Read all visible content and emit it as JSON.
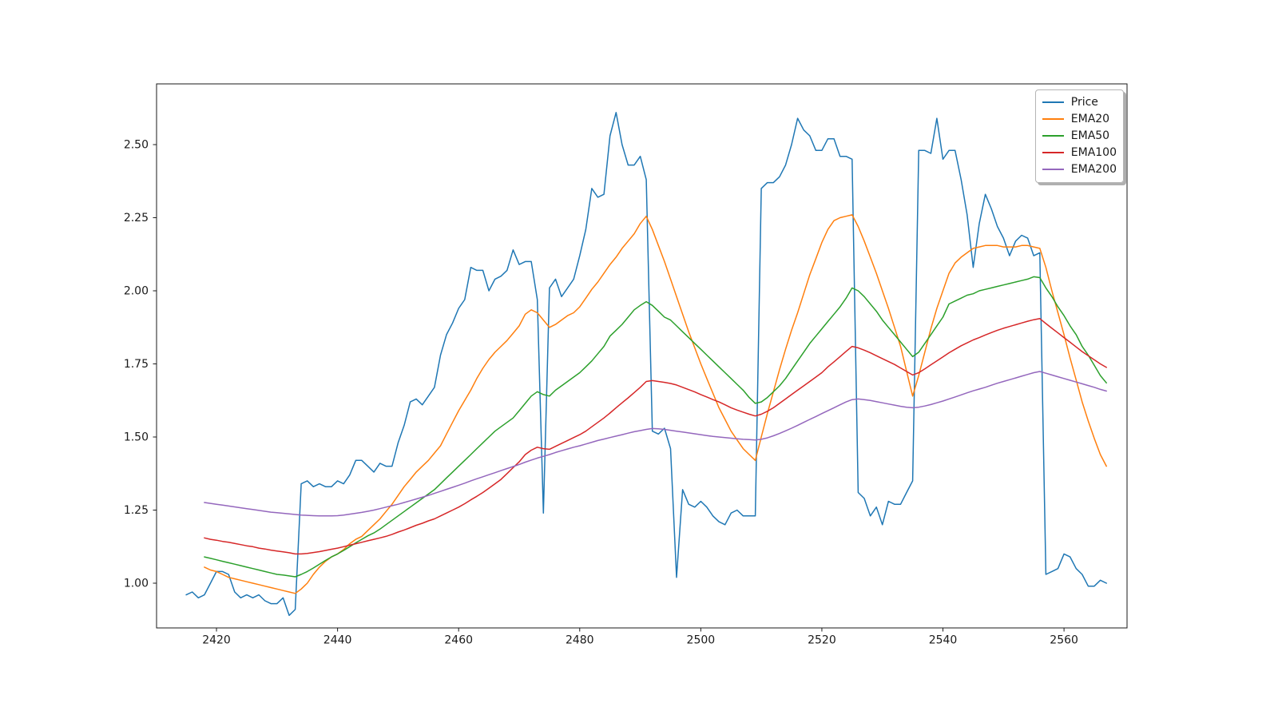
{
  "chart_data": {
    "type": "line",
    "title": "",
    "xlabel": "",
    "ylabel": "",
    "grid": false,
    "background": "#ffffff",
    "spine_color": "#1a1a1a",
    "x_axis": {
      "min": 2410.1,
      "max": 2570.41,
      "ticks": [
        2420,
        2440,
        2460,
        2480,
        2500,
        2520,
        2540,
        2560
      ]
    },
    "y_axis": {
      "min": 0.847,
      "max": 2.7077,
      "ticks": [
        "1.00",
        "1.25",
        "1.50",
        "1.75",
        "2.00",
        "2.25",
        "2.50"
      ]
    },
    "legend": {
      "position": "upper right",
      "entries": [
        "Price",
        "EMA20",
        "EMA50",
        "EMA100",
        "EMA200"
      ]
    },
    "series": [
      {
        "name": "Price",
        "color": "#1f77b4",
        "x_start": 2415,
        "x_step": 1,
        "values": [
          0.96,
          0.97,
          0.95,
          0.96,
          1.0,
          1.04,
          1.04,
          1.03,
          0.97,
          0.95,
          0.96,
          0.95,
          0.96,
          0.94,
          0.93,
          0.93,
          0.95,
          0.89,
          0.91,
          1.34,
          1.35,
          1.33,
          1.34,
          1.33,
          1.33,
          1.35,
          1.34,
          1.37,
          1.42,
          1.42,
          1.4,
          1.38,
          1.41,
          1.4,
          1.4,
          1.48,
          1.54,
          1.62,
          1.63,
          1.61,
          1.64,
          1.67,
          1.78,
          1.85,
          1.89,
          1.94,
          1.97,
          2.08,
          2.07,
          2.07,
          2.0,
          2.04,
          2.05,
          2.07,
          2.14,
          2.09,
          2.1,
          2.1,
          1.97,
          1.24,
          2.01,
          2.04,
          1.98,
          2.01,
          2.04,
          2.12,
          2.21,
          2.35,
          2.32,
          2.33,
          2.53,
          2.61,
          2.5,
          2.43,
          2.43,
          2.46,
          2.38,
          1.52,
          1.51,
          1.53,
          1.46,
          1.02,
          1.32,
          1.27,
          1.26,
          1.28,
          1.26,
          1.23,
          1.21,
          1.2,
          1.24,
          1.25,
          1.23,
          1.23,
          1.23,
          2.35,
          2.37,
          2.37,
          2.39,
          2.43,
          2.5,
          2.59,
          2.55,
          2.53,
          2.48,
          2.48,
          2.52,
          2.52,
          2.46,
          2.46,
          2.45,
          1.31,
          1.29,
          1.23,
          1.26,
          1.2,
          1.28,
          1.27,
          1.27,
          1.31,
          1.35,
          2.48,
          2.48,
          2.47,
          2.59,
          2.45,
          2.48,
          2.48,
          2.38,
          2.26,
          2.08,
          2.23,
          2.33,
          2.28,
          2.22,
          2.18,
          2.12,
          2.17,
          2.19,
          2.18,
          2.12,
          2.13,
          1.03,
          1.04,
          1.05,
          1.1,
          1.09,
          1.05,
          1.03,
          0.99,
          0.99,
          1.01,
          1.0
        ]
      },
      {
        "name": "EMA20",
        "color": "#ff7f0e",
        "x_start": 2418,
        "x_step": 1,
        "values": [
          1.055,
          1.045,
          1.04,
          1.03,
          1.02,
          1.015,
          1.01,
          1.005,
          1.0,
          0.995,
          0.99,
          0.985,
          0.98,
          0.975,
          0.97,
          0.965,
          0.98,
          1.0,
          1.03,
          1.055,
          1.075,
          1.09,
          1.1,
          1.115,
          1.135,
          1.15,
          1.16,
          1.18,
          1.2,
          1.22,
          1.245,
          1.27,
          1.3,
          1.33,
          1.355,
          1.38,
          1.4,
          1.42,
          1.445,
          1.47,
          1.51,
          1.55,
          1.59,
          1.625,
          1.66,
          1.7,
          1.735,
          1.765,
          1.79,
          1.81,
          1.83,
          1.855,
          1.88,
          1.92,
          1.935,
          1.925,
          1.9,
          1.875,
          1.885,
          1.9,
          1.915,
          1.925,
          1.945,
          1.975,
          2.005,
          2.03,
          2.06,
          2.09,
          2.115,
          2.145,
          2.17,
          2.195,
          2.23,
          2.255,
          2.21,
          2.155,
          2.1,
          2.04,
          1.98,
          1.92,
          1.86,
          1.805,
          1.75,
          1.7,
          1.65,
          1.6,
          1.56,
          1.52,
          1.49,
          1.46,
          1.44,
          1.42,
          1.5,
          1.58,
          1.655,
          1.73,
          1.8,
          1.865,
          1.925,
          1.99,
          2.055,
          2.11,
          2.165,
          2.21,
          2.24,
          2.25,
          2.255,
          2.26,
          2.22,
          2.17,
          2.115,
          2.06,
          2.0,
          1.94,
          1.875,
          1.81,
          1.725,
          1.64,
          1.71,
          1.79,
          1.87,
          1.94,
          2.0,
          2.06,
          2.095,
          2.115,
          2.13,
          2.145,
          2.15,
          2.155,
          2.155,
          2.155,
          2.15,
          2.15,
          2.15,
          2.155,
          2.155,
          2.15,
          2.145,
          2.08,
          2.0,
          1.925,
          1.85,
          1.77,
          1.695,
          1.62,
          1.555,
          1.495,
          1.44,
          1.4
        ]
      },
      {
        "name": "EMA50",
        "color": "#2ca02c",
        "x_start": 2418,
        "x_step": 1,
        "values": [
          1.09,
          1.085,
          1.08,
          1.075,
          1.07,
          1.065,
          1.06,
          1.055,
          1.05,
          1.045,
          1.04,
          1.035,
          1.03,
          1.028,
          1.025,
          1.022,
          1.03,
          1.04,
          1.052,
          1.065,
          1.078,
          1.09,
          1.1,
          1.112,
          1.125,
          1.138,
          1.15,
          1.162,
          1.172,
          1.185,
          1.2,
          1.215,
          1.23,
          1.245,
          1.26,
          1.275,
          1.29,
          1.305,
          1.32,
          1.34,
          1.36,
          1.38,
          1.4,
          1.42,
          1.44,
          1.46,
          1.48,
          1.5,
          1.52,
          1.535,
          1.55,
          1.565,
          1.59,
          1.615,
          1.64,
          1.655,
          1.645,
          1.64,
          1.66,
          1.675,
          1.69,
          1.705,
          1.72,
          1.74,
          1.76,
          1.785,
          1.81,
          1.845,
          1.865,
          1.885,
          1.91,
          1.935,
          1.95,
          1.963,
          1.95,
          1.93,
          1.91,
          1.9,
          1.88,
          1.86,
          1.84,
          1.82,
          1.8,
          1.78,
          1.76,
          1.74,
          1.72,
          1.7,
          1.68,
          1.66,
          1.635,
          1.615,
          1.62,
          1.635,
          1.655,
          1.675,
          1.7,
          1.73,
          1.76,
          1.79,
          1.82,
          1.845,
          1.87,
          1.895,
          1.92,
          1.945,
          1.975,
          2.01,
          2.0,
          1.98,
          1.955,
          1.93,
          1.9,
          1.875,
          1.85,
          1.825,
          1.8,
          1.775,
          1.79,
          1.82,
          1.85,
          1.88,
          1.91,
          1.955,
          1.965,
          1.975,
          1.985,
          1.99,
          2.0,
          2.005,
          2.01,
          2.015,
          2.02,
          2.025,
          2.03,
          2.035,
          2.04,
          2.048,
          2.045,
          2.01,
          1.98,
          1.945,
          1.915,
          1.88,
          1.85,
          1.81,
          1.78,
          1.745,
          1.71,
          1.685
        ]
      },
      {
        "name": "EMA100",
        "color": "#d62728",
        "x_start": 2418,
        "x_step": 1,
        "values": [
          1.155,
          1.15,
          1.147,
          1.143,
          1.14,
          1.136,
          1.132,
          1.128,
          1.125,
          1.12,
          1.117,
          1.113,
          1.11,
          1.107,
          1.104,
          1.1,
          1.1,
          1.102,
          1.105,
          1.108,
          1.112,
          1.116,
          1.12,
          1.125,
          1.13,
          1.135,
          1.14,
          1.145,
          1.15,
          1.155,
          1.16,
          1.167,
          1.175,
          1.182,
          1.19,
          1.198,
          1.205,
          1.213,
          1.22,
          1.23,
          1.24,
          1.25,
          1.26,
          1.272,
          1.285,
          1.297,
          1.31,
          1.325,
          1.34,
          1.355,
          1.375,
          1.395,
          1.415,
          1.44,
          1.455,
          1.465,
          1.46,
          1.458,
          1.468,
          1.478,
          1.488,
          1.498,
          1.508,
          1.52,
          1.535,
          1.55,
          1.565,
          1.582,
          1.6,
          1.617,
          1.634,
          1.652,
          1.67,
          1.69,
          1.693,
          1.69,
          1.687,
          1.683,
          1.678,
          1.67,
          1.662,
          1.654,
          1.645,
          1.637,
          1.628,
          1.62,
          1.61,
          1.6,
          1.592,
          1.585,
          1.578,
          1.572,
          1.578,
          1.588,
          1.6,
          1.615,
          1.63,
          1.645,
          1.66,
          1.675,
          1.69,
          1.705,
          1.72,
          1.74,
          1.757,
          1.775,
          1.793,
          1.81,
          1.805,
          1.797,
          1.788,
          1.778,
          1.768,
          1.758,
          1.748,
          1.736,
          1.724,
          1.712,
          1.72,
          1.733,
          1.747,
          1.76,
          1.774,
          1.788,
          1.8,
          1.812,
          1.822,
          1.832,
          1.84,
          1.849,
          1.857,
          1.865,
          1.872,
          1.878,
          1.884,
          1.89,
          1.896,
          1.901,
          1.905,
          1.888,
          1.872,
          1.856,
          1.84,
          1.824,
          1.808,
          1.792,
          1.778,
          1.764,
          1.75,
          1.738
        ]
      },
      {
        "name": "EMA200",
        "color": "#9467bd",
        "x_start": 2418,
        "x_step": 1,
        "values": [
          1.276,
          1.273,
          1.27,
          1.267,
          1.264,
          1.261,
          1.258,
          1.255,
          1.252,
          1.249,
          1.246,
          1.243,
          1.241,
          1.239,
          1.237,
          1.235,
          1.233,
          1.232,
          1.231,
          1.23,
          1.23,
          1.23,
          1.231,
          1.233,
          1.236,
          1.239,
          1.242,
          1.246,
          1.25,
          1.255,
          1.26,
          1.265,
          1.27,
          1.276,
          1.282,
          1.288,
          1.294,
          1.3,
          1.307,
          1.314,
          1.321,
          1.328,
          1.335,
          1.342,
          1.35,
          1.357,
          1.364,
          1.371,
          1.378,
          1.385,
          1.392,
          1.399,
          1.406,
          1.414,
          1.421,
          1.428,
          1.434,
          1.44,
          1.447,
          1.453,
          1.459,
          1.465,
          1.47,
          1.476,
          1.482,
          1.488,
          1.493,
          1.498,
          1.503,
          1.508,
          1.513,
          1.518,
          1.522,
          1.526,
          1.529,
          1.528,
          1.526,
          1.523,
          1.52,
          1.517,
          1.514,
          1.511,
          1.508,
          1.505,
          1.502,
          1.5,
          1.498,
          1.496,
          1.494,
          1.492,
          1.491,
          1.49,
          1.492,
          1.497,
          1.504,
          1.512,
          1.521,
          1.53,
          1.54,
          1.55,
          1.56,
          1.57,
          1.58,
          1.59,
          1.6,
          1.61,
          1.62,
          1.628,
          1.63,
          1.628,
          1.625,
          1.621,
          1.617,
          1.613,
          1.609,
          1.605,
          1.602,
          1.6,
          1.602,
          1.606,
          1.611,
          1.617,
          1.623,
          1.63,
          1.637,
          1.644,
          1.651,
          1.658,
          1.664,
          1.67,
          1.677,
          1.684,
          1.69,
          1.696,
          1.702,
          1.708,
          1.714,
          1.72,
          1.724,
          1.718,
          1.712,
          1.706,
          1.7,
          1.694,
          1.688,
          1.682,
          1.676,
          1.67,
          1.663,
          1.657
        ]
      }
    ]
  }
}
